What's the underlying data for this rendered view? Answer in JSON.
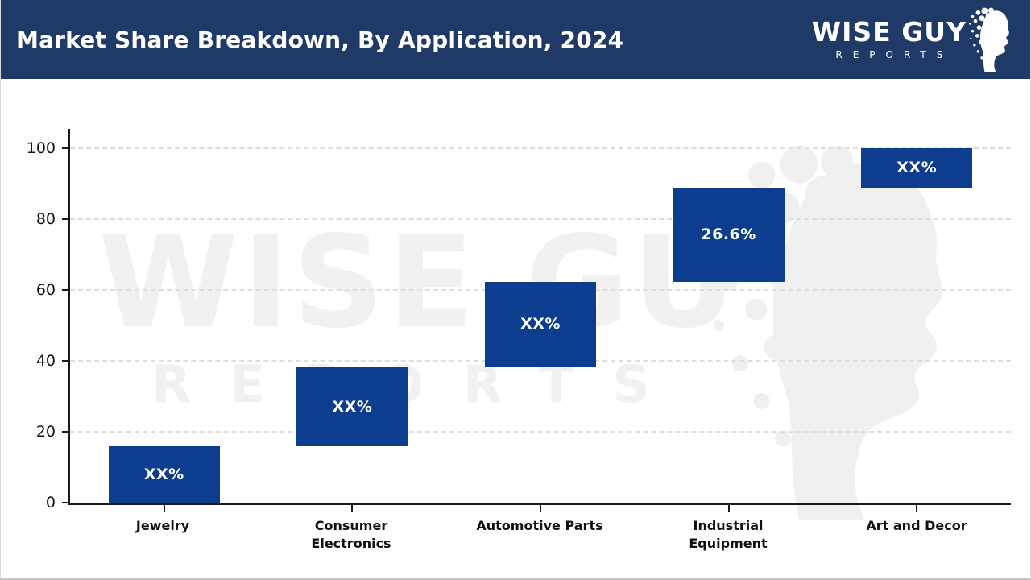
{
  "header": {
    "title": "Market Share Breakdown, By Application, 2024",
    "bg_color": "#1f3a67",
    "logo": {
      "line1": "WISE GUY",
      "line2": "REPORTS"
    }
  },
  "watermark": {
    "line1": "WISE GUY",
    "line2": "REPORTS"
  },
  "chart_data": {
    "type": "bar",
    "subtype": "waterfall-floating-bars",
    "title": "Market Share Breakdown, By Application, 2024",
    "categories": [
      "Jewelry",
      "Consumer\nElectronics",
      "Automotive Parts",
      "Industrial\nEquipment",
      "Art and Decor"
    ],
    "segments": [
      {
        "category": "Jewelry",
        "start": 0,
        "end": 16,
        "label": "XX%"
      },
      {
        "category": "Consumer Electronics",
        "start": 15.9,
        "end": 38.2,
        "label": "XX%"
      },
      {
        "category": "Automotive Parts",
        "start": 38.4,
        "end": 62.3,
        "label": "XX%"
      },
      {
        "category": "Industrial Equipment",
        "start": 62.3,
        "end": 88.9,
        "label": "26.6%"
      },
      {
        "category": "Art and Decor",
        "start": 88.9,
        "end": 100,
        "label": "XX%"
      }
    ],
    "yticks": [
      0,
      20,
      40,
      60,
      80,
      100
    ],
    "ylim": [
      0,
      100
    ],
    "xlabel": "",
    "ylabel": "",
    "grid": "horizontal-dashed",
    "legend": "none",
    "bar_color": "#0c3d8e",
    "value_label_color": "#ffffff",
    "axis_color": "#1a1a1a",
    "gridline_color": "#dedede"
  }
}
